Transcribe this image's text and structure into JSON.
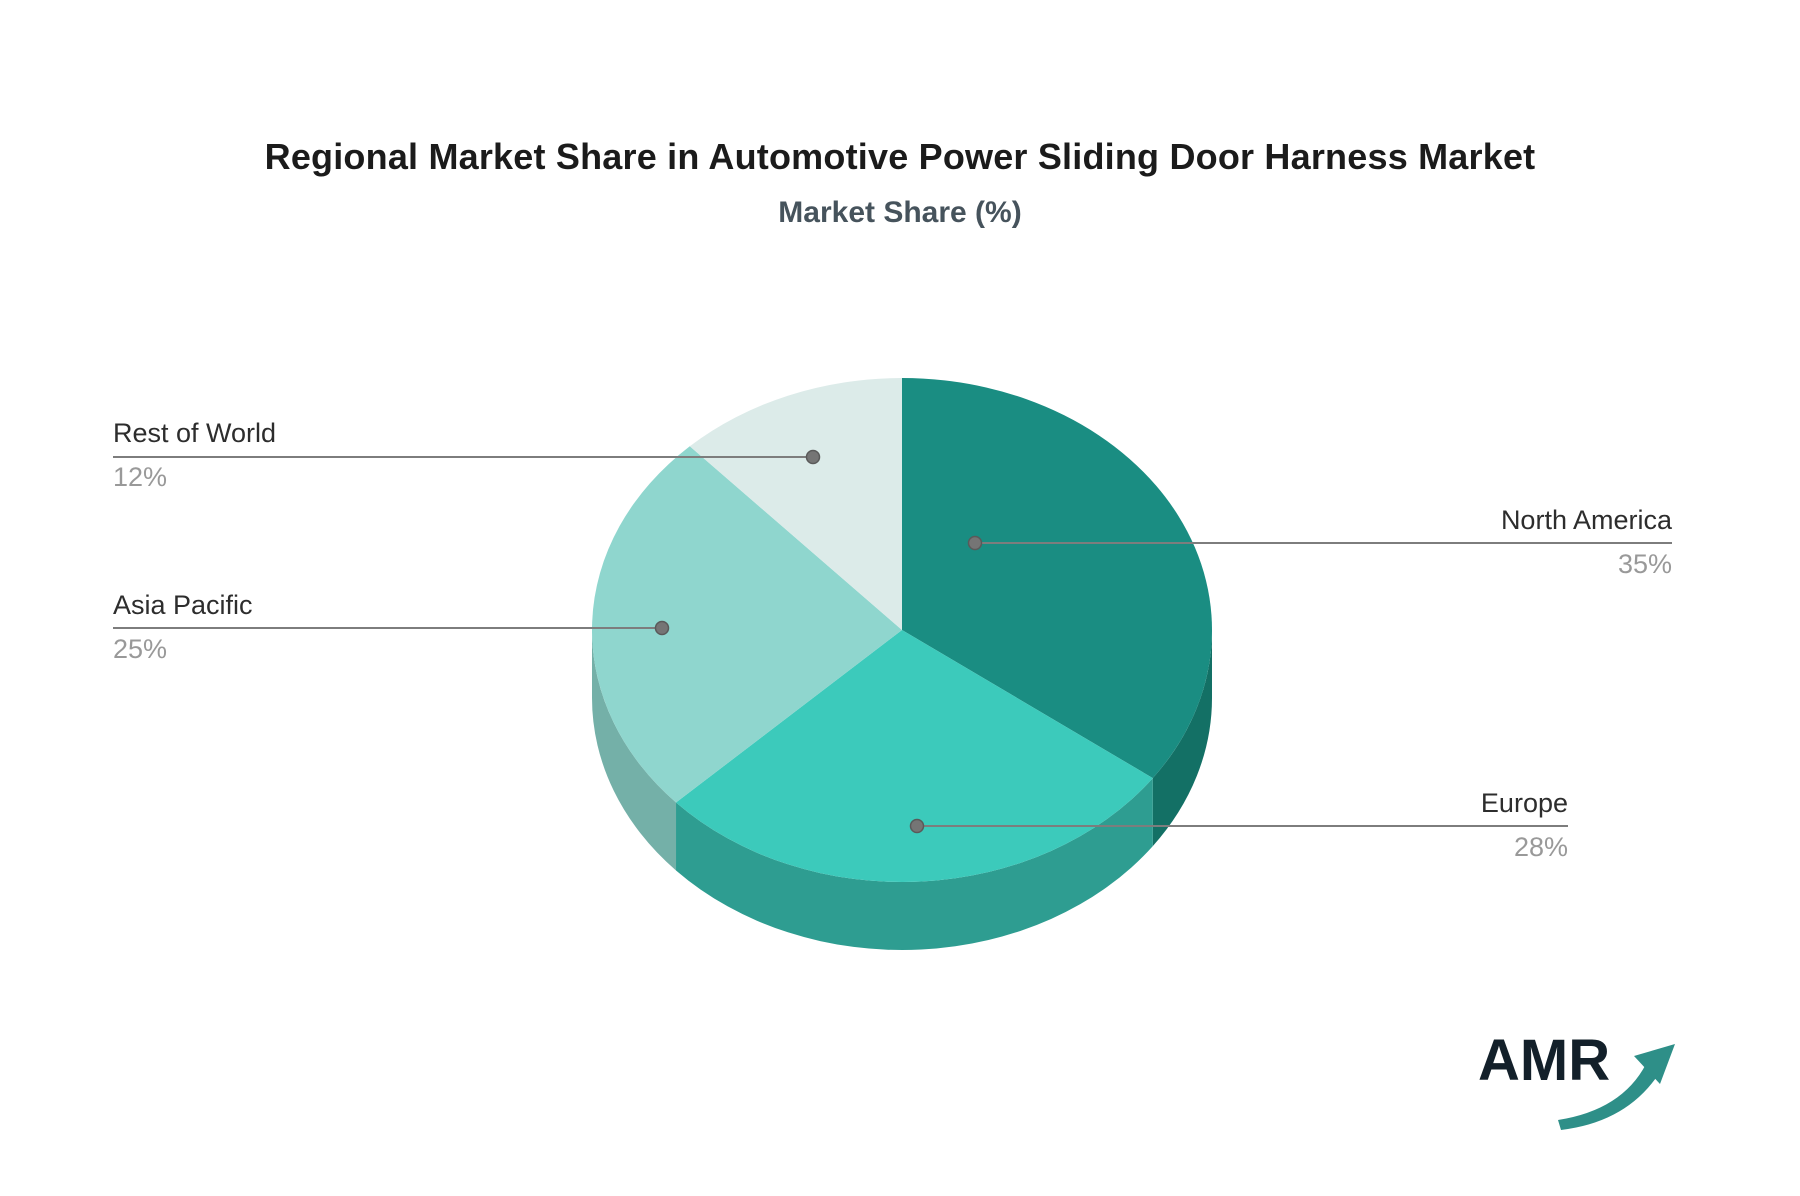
{
  "page": {
    "background": "#ffffff"
  },
  "header": {
    "title": "Regional Market Share in Automotive Power Sliding Door Harness Market",
    "subtitle": "Market Share (%)"
  },
  "chart_data": {
    "type": "pie",
    "style": "3d",
    "title": "Regional Market Share in Automotive Power Sliding Door Harness Market",
    "subtitle": "Market Share (%)",
    "unit": "%",
    "start_angle_deg": 0,
    "direction": "clockwise",
    "legend_position": "none",
    "series": [
      {
        "label": "North America",
        "value": 35,
        "pct_label": "35%",
        "color": "#1a8d82",
        "side_color": "#137065"
      },
      {
        "label": "Europe",
        "value": 28,
        "pct_label": "28%",
        "color": "#3ccabb",
        "side_color": "#2e9d91"
      },
      {
        "label": "Asia Pacific",
        "value": 25,
        "pct_label": "25%",
        "color": "#8fd6ce",
        "side_color": "#74b0a8"
      },
      {
        "label": "Rest of World",
        "value": 12,
        "pct_label": "12%",
        "color": "#dcebe9",
        "side_color": "#bcdad6"
      }
    ],
    "label_color": "#2d2d2d",
    "pct_color": "#999999",
    "leader_color": "#7d7d7d"
  },
  "logo": {
    "text": "AMR",
    "text_color": "#13202a",
    "arrow_color": "#2e8f88"
  }
}
